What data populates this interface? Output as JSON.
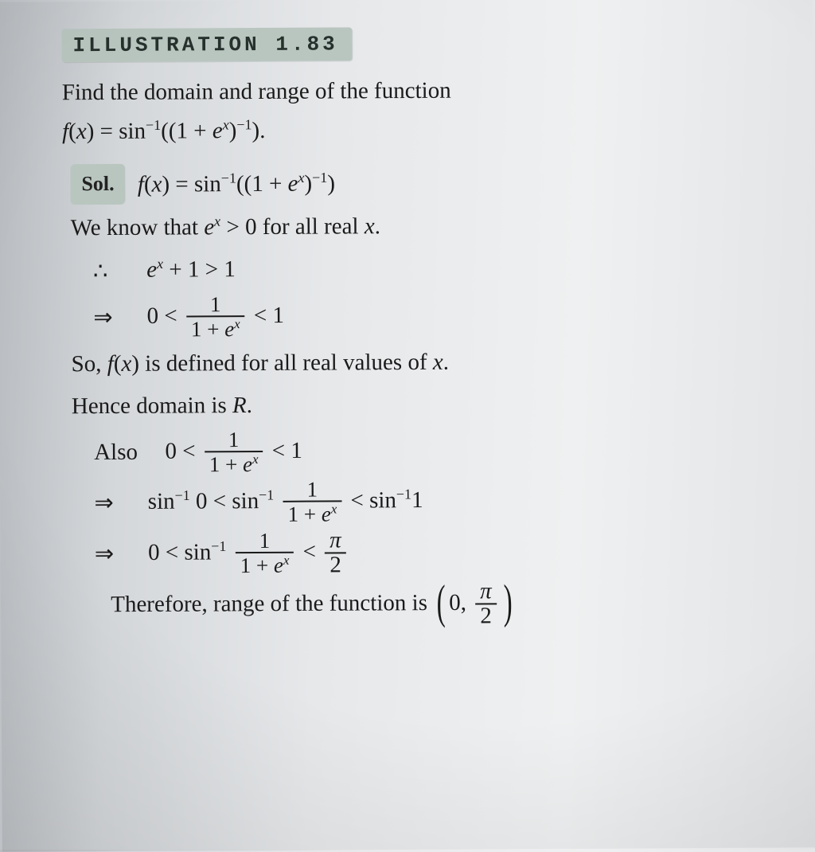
{
  "badge": "ILLUSTRATION 1.83",
  "prompt": "Find the domain and range of the function",
  "prompt_eq_lhs_var": "f",
  "prompt_eq_lhs_arg": "x",
  "sin_inv": "sin",
  "neg1": "−1",
  "one_plus_ex_base": "1 + ",
  "e": "e",
  "x": "x",
  "pow_neg1": "−1",
  "sol_label": "Sol.",
  "we_know": "We know that ",
  "gt0": " > 0 for all real ",
  "dot": ".",
  "therefore": "∴",
  "implies": "⇒",
  "ex_plus_1_gt_1_left": " + 1 > 1",
  "lt1": " < 1",
  "zero_lt": "0 < ",
  "so_fx": "So, ",
  "is_defined": " is defined for all real values of ",
  "hence_domain": "Hence domain is ",
  "R": "R",
  "also": "Also",
  "sin_inv_0": "0 < sin",
  "lt_sin_inv_1": " < sin",
  "one": "1",
  "pi": "π",
  "two": "2",
  "therefore_range": "Therefore, range of the function is ",
  "zero": "0",
  "comma": ", "
}
